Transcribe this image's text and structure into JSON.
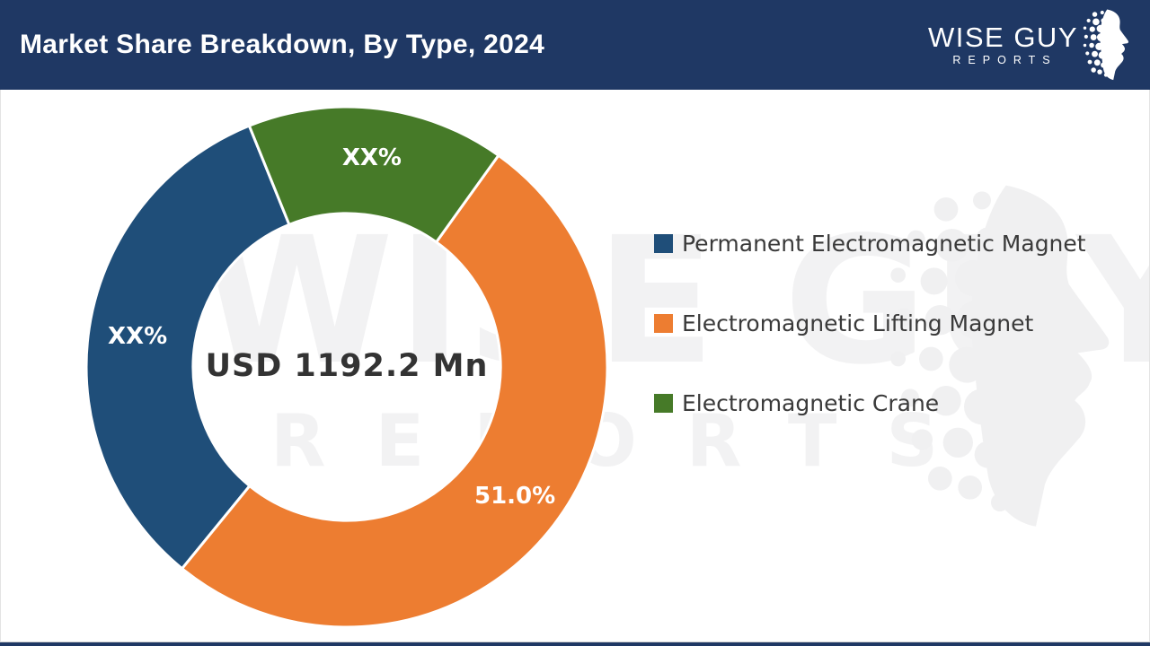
{
  "header": {
    "title": "Market Share Breakdown, By Type, 2024",
    "logo": {
      "line1": "WISE GUY",
      "line2": "REPORTS"
    }
  },
  "chart_data": {
    "type": "donut",
    "title": "Market Share Breakdown, By Type, 2024",
    "center_label": "USD 1192.2 Mn",
    "start_angle_deg": 112,
    "direction": "counterclockwise",
    "inner_radius_ratio": 0.59,
    "legend_position": "right",
    "slices": [
      {
        "name": "Permanent Electromagnetic Magnet",
        "label": "XX%",
        "value_pct": 33.0,
        "color": "#1F4E79"
      },
      {
        "name": "Electromagnetic Lifting Magnet",
        "label": "51.0%",
        "value_pct": 51.0,
        "color": "#ED7D31"
      },
      {
        "name": "Electromagnetic Crane",
        "label": "XX%",
        "value_pct": 16.0,
        "color": "#467A28"
      }
    ]
  },
  "watermark": {
    "line1": "WISE GUY",
    "line2": "REPORTS"
  },
  "colors": {
    "header_bg": "#1F3864",
    "footer_bg": "#1F3864",
    "title_text": "#FFFFFF",
    "center_text": "#333333",
    "legend_text": "#3A3A3A",
    "slice_divider": "#FFFFFF",
    "watermark": "#F2F2F3"
  }
}
